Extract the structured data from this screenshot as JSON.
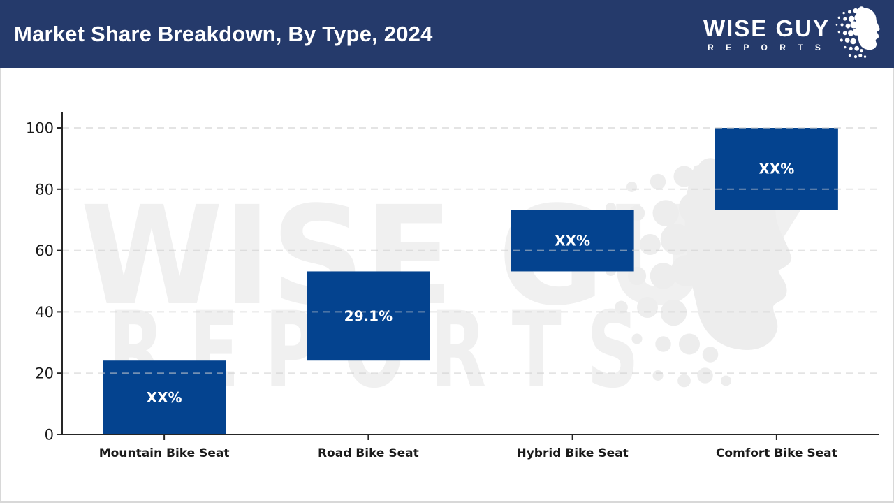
{
  "header": {
    "title": "Market Share Breakdown, By Type, 2024",
    "bg_color": "#253a6b",
    "text_color": "#ffffff",
    "logo": {
      "line1": "WISE GUY",
      "line2": "R E P O R T S"
    }
  },
  "watermark": {
    "line1": "WISE GUY",
    "line2": "R E P O R T S"
  },
  "chart_data": {
    "type": "bar",
    "subtype": "floating-segment-waterfall",
    "title": "Market Share Breakdown, By Type, 2024",
    "categories": [
      "Mountain Bike Seat",
      "Road Bike Seat",
      "Hybrid Bike Seat",
      "Comfort Bike Seat"
    ],
    "segments": [
      {
        "category": "Mountain Bike Seat",
        "start": 0,
        "end": 24.1,
        "label": "XX%"
      },
      {
        "category": "Road Bike Seat",
        "start": 24.1,
        "end": 53.2,
        "label": "29.1%"
      },
      {
        "category": "Hybrid Bike Seat",
        "start": 53.2,
        "end": 73.3,
        "label": "XX%"
      },
      {
        "category": "Comfort Bike Seat",
        "start": 73.3,
        "end": 100,
        "label": "XX%"
      }
    ],
    "xlabel": "",
    "ylabel": "",
    "ylim": [
      0,
      105
    ],
    "yticks": [
      0,
      20,
      40,
      60,
      80,
      100
    ],
    "grid": "horizontal dashed",
    "legend": "none",
    "colors": {
      "bar": "#04438f",
      "bar_label": "#ffffff",
      "axis": "#262626",
      "tick_label": "#1a1a1a",
      "grid": "#cfcfcf",
      "watermark": "#f0f0f0"
    }
  }
}
